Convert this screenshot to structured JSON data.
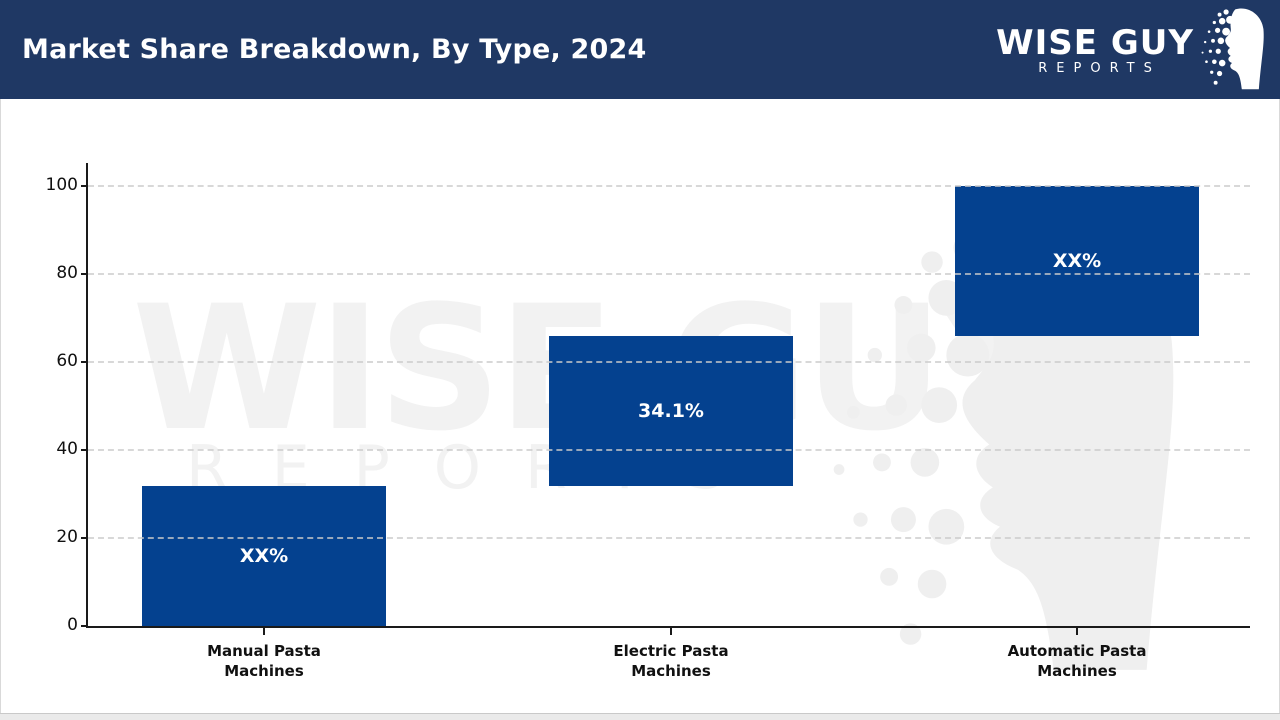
{
  "header": {
    "title": "Market Share Breakdown, By Type, 2024",
    "logo": {
      "brand_top": "WISE GUY",
      "brand_bottom": "REPORTS"
    }
  },
  "watermark": {
    "brand_top": "WISE GUY",
    "brand_bottom": "REPORTS"
  },
  "chart_data": {
    "type": "bar",
    "subtype": "waterfall",
    "title": "Market Share Breakdown, By Type, 2024",
    "categories": [
      "Manual Pasta\nMachines",
      "Electric Pasta\nMachines",
      "Automatic Pasta\nMachines"
    ],
    "bars": [
      {
        "category": "Manual Pasta Machines",
        "label": "XX%",
        "start": 0,
        "end": 31.8
      },
      {
        "category": "Electric Pasta Machines",
        "label": "34.1%",
        "start": 31.8,
        "end": 65.9
      },
      {
        "category": "Automatic Pasta Machines",
        "label": "XX%",
        "start": 65.9,
        "end": 100
      }
    ],
    "ylim": [
      0,
      100
    ],
    "yticks": [
      0,
      20,
      40,
      60,
      80,
      100
    ],
    "xlabel": "",
    "ylabel": "",
    "grid": "horizontal-dashed",
    "legend": "none"
  },
  "colors": {
    "header_bg": "#1F3864",
    "bar": "#04418F",
    "axis": "#1a1a1a",
    "gridline": "#d9d9d9",
    "watermark": "#f2f2f2"
  }
}
